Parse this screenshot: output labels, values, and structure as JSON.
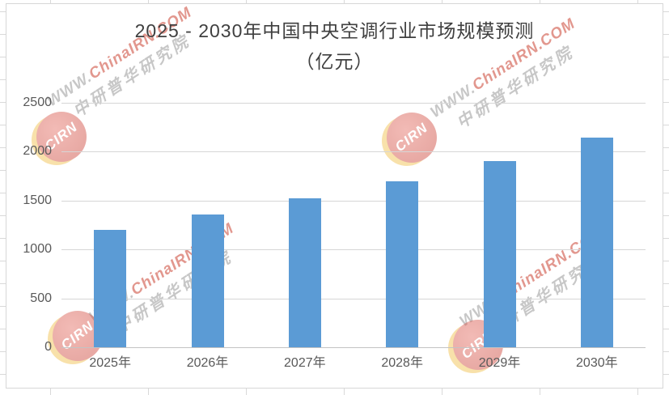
{
  "chart_data": {
    "type": "bar",
    "title": "2025 - 2030年中国中央空调行业市场规模预测（亿元）",
    "title_line1": "2025 - 2030年中国中央空调行业市场规模预测",
    "title_line2": "（亿元）",
    "categories": [
      "2025年",
      "2026年",
      "2027年",
      "2028年",
      "2029年",
      "2030年"
    ],
    "values": [
      1200,
      1360,
      1520,
      1700,
      1900,
      2140
    ],
    "xlabel": "",
    "ylabel": "",
    "ylim": [
      0,
      2500
    ],
    "yticks": [
      0,
      500,
      1000,
      1500,
      2000,
      2500
    ],
    "grid": "horizontal",
    "legend": "none",
    "bar_color": "#5B9BD5",
    "axis_label_color": "#595959",
    "gridline_color": "#d6d6d6",
    "title_color": "#3f3f3f"
  },
  "watermark": {
    "logo_text": "CIRN",
    "url_prefix": "WWW.",
    "url_main": "ChinaIRN.COM",
    "org_name": "中研普华研究院"
  }
}
